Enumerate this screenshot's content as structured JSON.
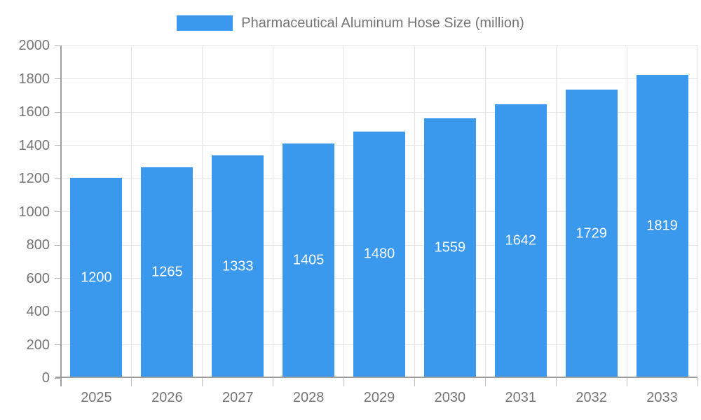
{
  "chart_data": {
    "type": "bar",
    "title": "Pharmaceutical Aluminum Hose Size (million)",
    "categories": [
      "2025",
      "2026",
      "2027",
      "2028",
      "2029",
      "2030",
      "2031",
      "2032",
      "2033"
    ],
    "values": [
      1200,
      1265,
      1333,
      1405,
      1480,
      1559,
      1642,
      1729,
      1819
    ],
    "xlabel": "",
    "ylabel": "",
    "ylim": [
      0,
      2000
    ],
    "yticks": [
      0,
      200,
      400,
      600,
      800,
      1000,
      1200,
      1400,
      1600,
      1800,
      2000
    ],
    "grid": true,
    "legend_position": "top",
    "bar_labels_inside": true,
    "colors": {
      "bar_fill": "#3a99ec",
      "bar_label_text": "#ffffff",
      "axis_text": "#757575",
      "grid_line": "#e5e5e5",
      "axis_line": "#9e9e9e"
    }
  }
}
